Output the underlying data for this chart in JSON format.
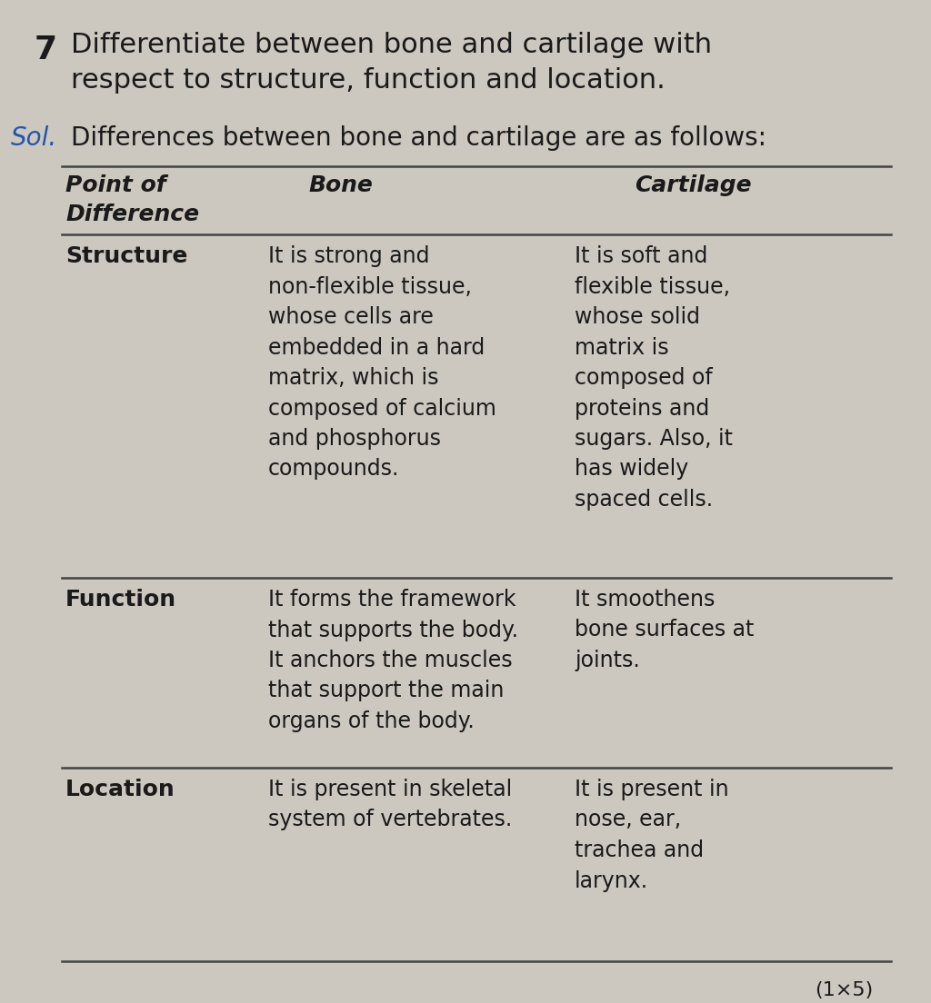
{
  "title_number": "7",
  "title_text": "Differentiate between bone and cartilage with\nrespect to structure, function and location.",
  "sol_label": "Sol.",
  "sol_text": "Differences between bone and cartilage are as follows:",
  "background_color": "#ccc8c0",
  "text_color": "#1a1a1a",
  "title_color": "#1a1a1a",
  "sol_color": "#2255aa",
  "col_headers": [
    "Point of\nDifference",
    "Bone",
    "Cartilage"
  ],
  "rows": [
    {
      "point": "Structure",
      "bone": "It is strong and\nnon-flexible tissue,\nwhose cells are\nembedded in a hard\nmatrix, which is\ncomposed of calcium\nand phosphorus\ncompounds.",
      "cartilage": "It is soft and\nflexible tissue,\nwhose solid\nmatrix is\ncomposed of\nproteins and\nsugars. Also, it\nhas widely\nspaced cells."
    },
    {
      "point": "Function",
      "bone": "It forms the framework\nthat supports the body.\nIt anchors the muscles\nthat support the main\norgans of the body.",
      "cartilage": "It smoothens\nbone surfaces at\njoints."
    },
    {
      "point": "Location",
      "bone": "It is present in skeletal\nsystem of vertebrates.",
      "cartilage": "It is present in\nnose, ear,\ntrachea and\nlarynx."
    }
  ],
  "footer_text": "(1×5)"
}
